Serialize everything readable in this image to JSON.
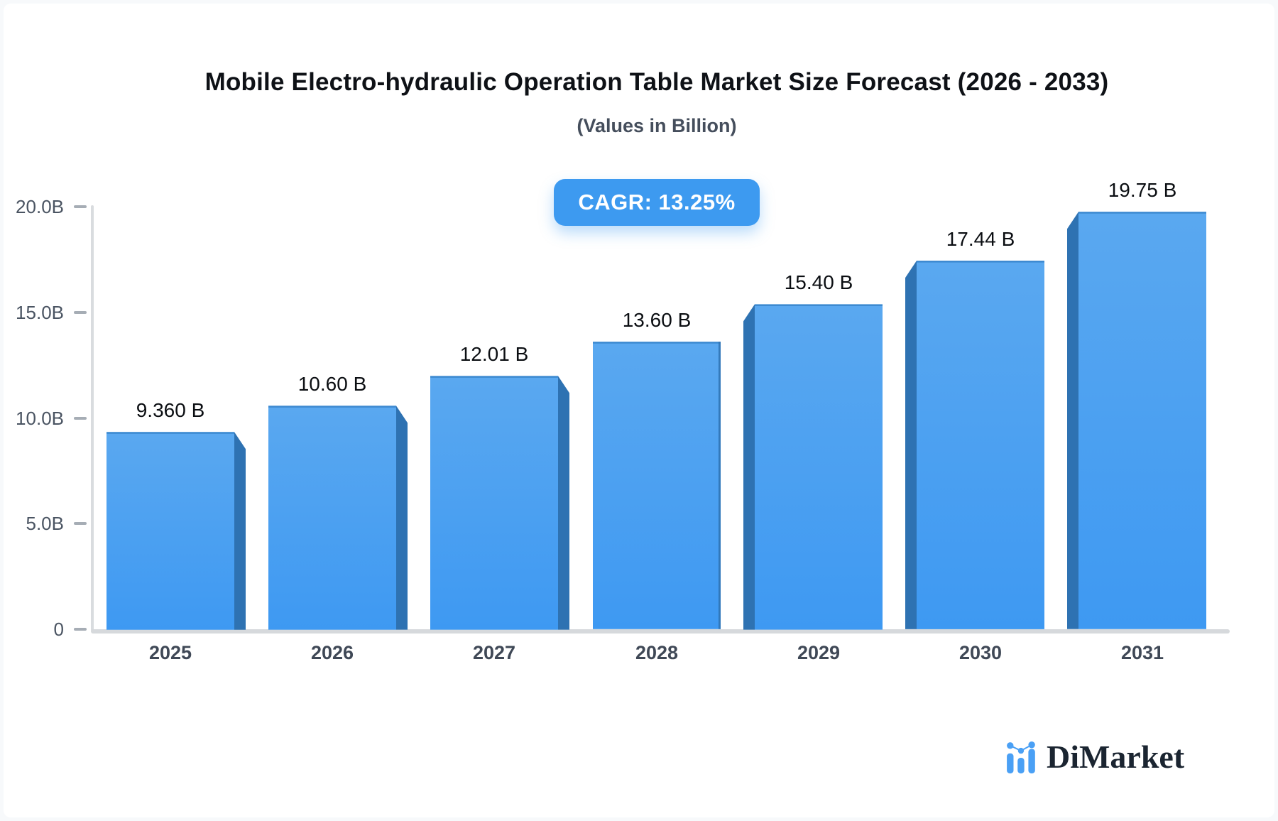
{
  "header": {
    "title": "Mobile Electro-hydraulic Operation Table Market Size Forecast (2026 - 2033)",
    "subtitle": "(Values in Billion)"
  },
  "badge": {
    "label": "CAGR: 13.25%",
    "bg": "#3d9af0",
    "text_color": "#ffffff"
  },
  "chart_data": {
    "type": "bar",
    "title": "Mobile Electro-hydraulic Operation Table Market Size Forecast (2026 - 2033)",
    "subtitle": "(Values in Billion)",
    "categories": [
      "2025",
      "2026",
      "2027",
      "2028",
      "2029",
      "2030",
      "2031"
    ],
    "values": [
      9.36,
      10.6,
      12.01,
      13.6,
      15.4,
      17.44,
      19.75
    ],
    "bar_labels": [
      "9.360 B",
      "10.60 B",
      "12.01 B",
      "13.60 B",
      "15.40 B",
      "17.44 B",
      "19.75 B"
    ],
    "cagr": "13.25%",
    "ylim": [
      0,
      20
    ],
    "yticks": [
      {
        "value": 0,
        "label": "0"
      },
      {
        "value": 5,
        "label": "5.0B"
      },
      {
        "value": 10,
        "label": "10.0B"
      },
      {
        "value": 15,
        "label": "15.0B"
      },
      {
        "value": 20,
        "label": "20.0B"
      }
    ],
    "grid": false,
    "legend": false,
    "style": "3d-perspective-bars",
    "colors": {
      "bar_top": "#5aa8f0",
      "bar_bottom": "#3e99f2",
      "bar_side": "#2e72b2",
      "bar_edge": "#2f7cc2",
      "axis": "#d7dadd",
      "tick": "#a6adb5",
      "tick_label": "#4a5462",
      "category_label": "#3f4856",
      "value_label": "#0b0e12"
    }
  },
  "logo": {
    "text": "DiMarket",
    "icon": "mini-bar-chart-icon",
    "text_color": "#1b2531",
    "icon_color": "#4aa0f5"
  }
}
